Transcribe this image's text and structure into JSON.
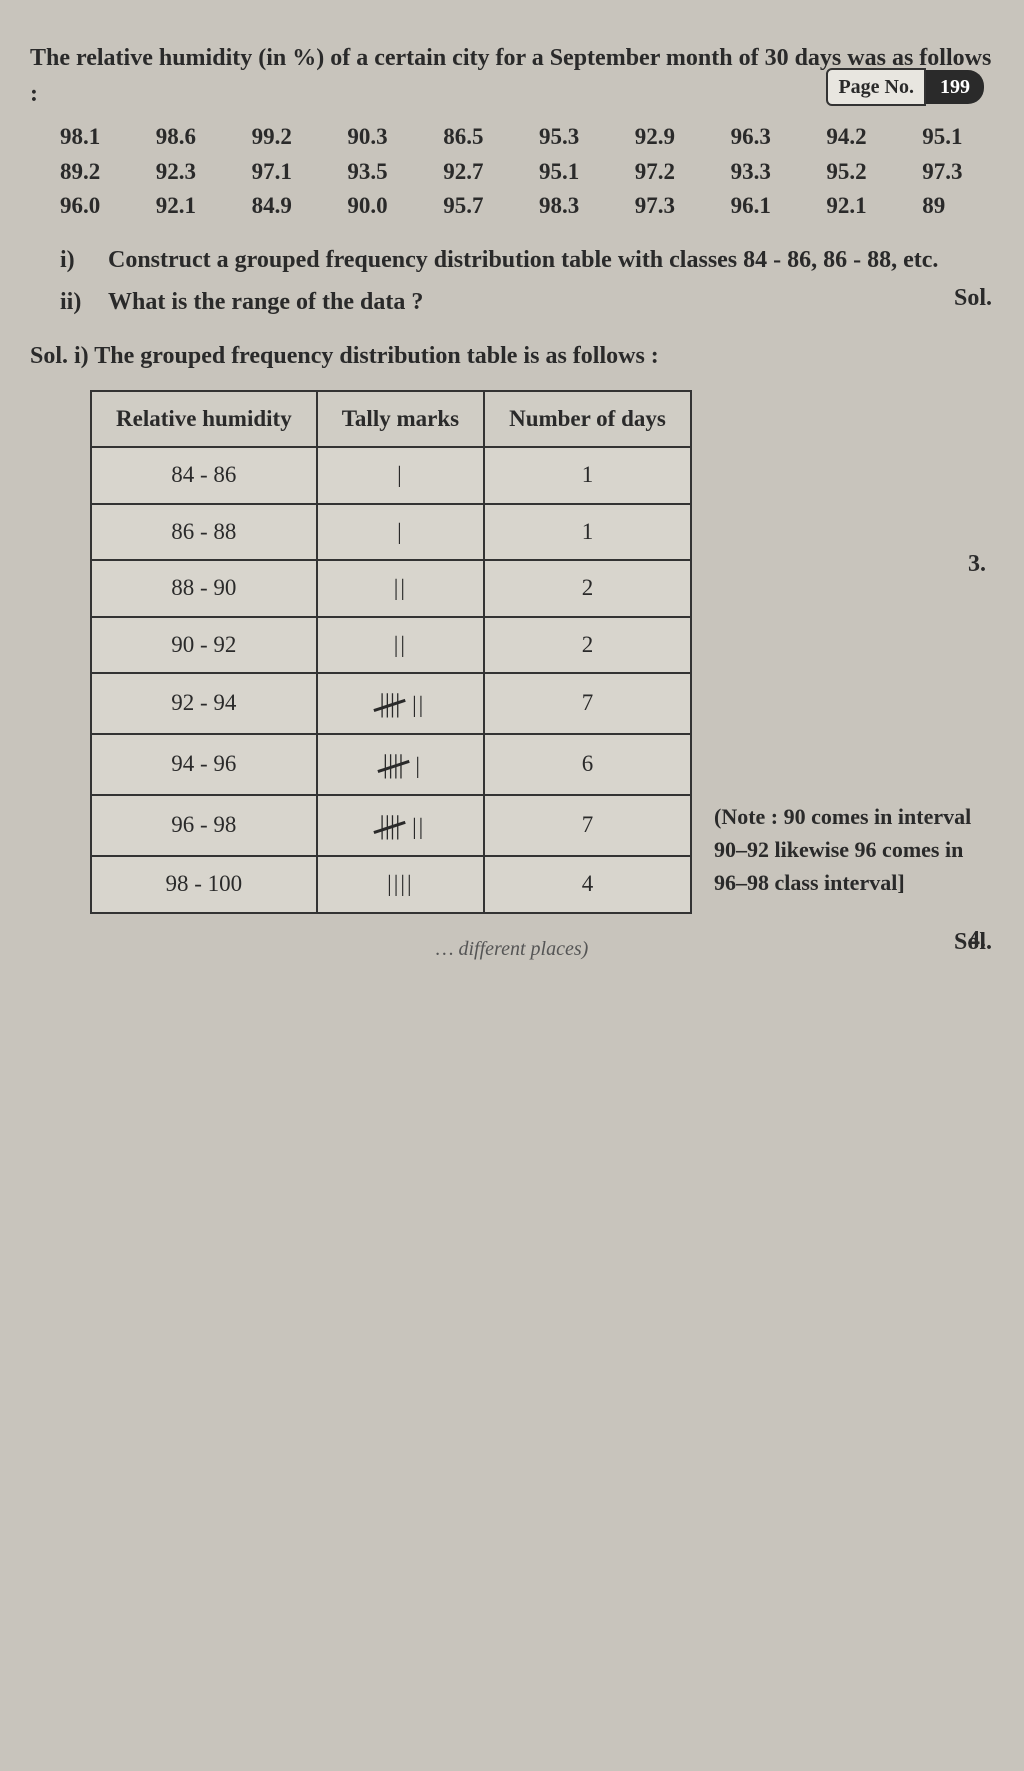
{
  "intro": "The relative humidity (in %) of a certain city for a September month of 30 days was as follows :",
  "page_badge": {
    "label": "Page No.",
    "number": "199"
  },
  "data_values": [
    "98.1",
    "98.6",
    "99.2",
    "90.3",
    "86.5",
    "95.3",
    "92.9",
    "96.3",
    "94.2",
    "95.1",
    "89.2",
    "92.3",
    "97.1",
    "93.5",
    "92.7",
    "95.1",
    "97.2",
    "93.3",
    "95.2",
    "97.3",
    "96.0",
    "92.1",
    "84.9",
    "90.0",
    "95.7",
    "98.3",
    "97.3",
    "96.1",
    "92.1",
    "89"
  ],
  "questions": [
    {
      "marker": "i)",
      "text": "Construct a grouped frequency distribution table with classes 84 - 86, 86 - 88, etc."
    },
    {
      "marker": "ii)",
      "text": "What is the range of the data ?"
    }
  ],
  "solution_line": {
    "label": "Sol.",
    "marker": "i)",
    "text": "The grouped frequency distribution table is as follows :"
  },
  "table": {
    "columns": [
      "Relative humidity",
      "Tally marks",
      "Number of days"
    ],
    "rows": [
      {
        "class": "84 - 86",
        "tally": {
          "fives": 0,
          "ones": 1
        },
        "count": 1
      },
      {
        "class": "86 - 88",
        "tally": {
          "fives": 0,
          "ones": 1
        },
        "count": 1
      },
      {
        "class": "88 - 90",
        "tally": {
          "fives": 0,
          "ones": 2
        },
        "count": 2
      },
      {
        "class": "90 - 92",
        "tally": {
          "fives": 0,
          "ones": 2
        },
        "count": 2
      },
      {
        "class": "92 - 94",
        "tally": {
          "fives": 1,
          "ones": 2
        },
        "count": 7
      },
      {
        "class": "94 - 96",
        "tally": {
          "fives": 1,
          "ones": 1
        },
        "count": 6
      },
      {
        "class": "96 - 98",
        "tally": {
          "fives": 1,
          "ones": 2
        },
        "count": 7
      },
      {
        "class": "98 - 100",
        "tally": {
          "fives": 0,
          "ones": 4
        },
        "count": 4
      }
    ]
  },
  "note": "(Note : 90 comes in interval 90–92 likewise 96 comes in 96–98 class interval]",
  "side": {
    "sol1": "Sol.",
    "three": "3.",
    "sol2": "Sol.",
    "four": "4."
  },
  "footer_hint": "… different places)"
}
